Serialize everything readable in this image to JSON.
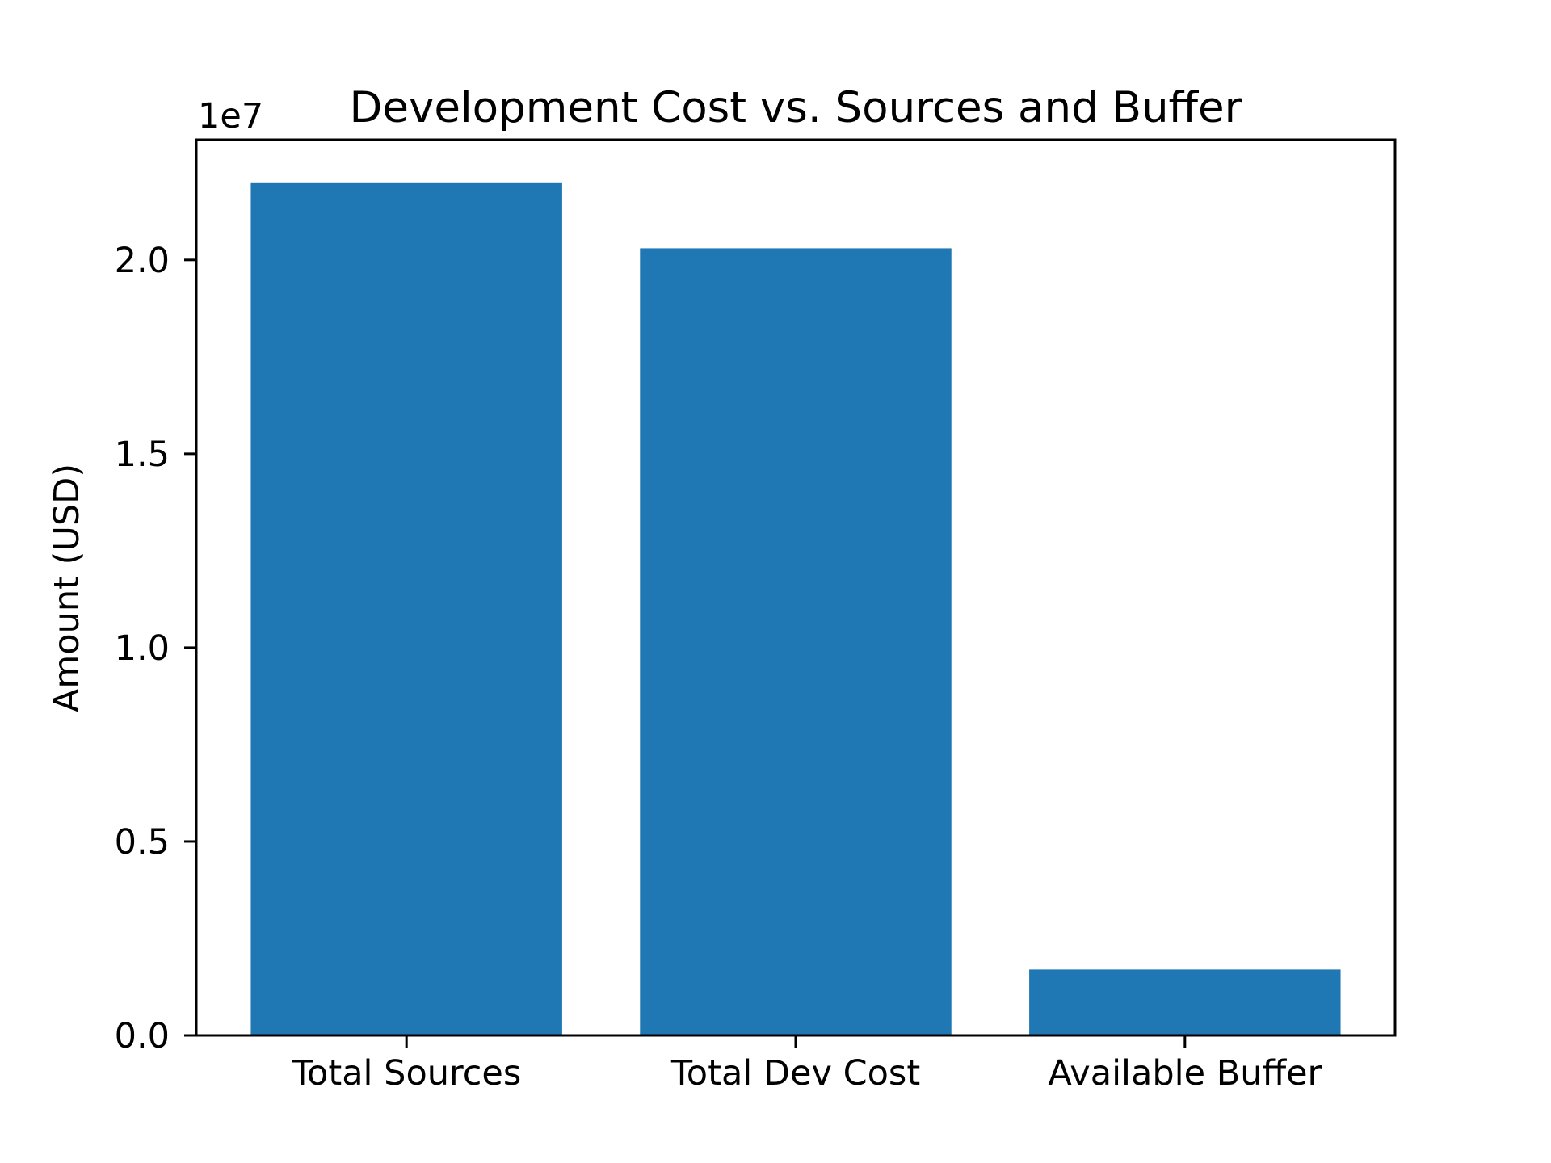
{
  "page": {
    "background": "#ffffff"
  },
  "chart_data": {
    "type": "bar",
    "title": "Development Cost vs. Sources and Buffer",
    "categories": [
      "Total Sources",
      "Total Dev Cost",
      "Available Buffer"
    ],
    "values": [
      22000000,
      20300000,
      1700000
    ],
    "xlabel": "",
    "ylabel": "Amount (USD)",
    "ylim": [
      0,
      23100000
    ],
    "yticks": [
      0,
      5000000,
      10000000,
      15000000,
      20000000
    ],
    "ytick_labels": [
      "0.0",
      "0.5",
      "1.0",
      "1.5",
      "2.0"
    ],
    "axis_offset_text": "1e7",
    "bar_color": "#1f77b4",
    "axis_color": "#000000",
    "text_color": "#000000",
    "grid": false,
    "legend_position": "none"
  }
}
